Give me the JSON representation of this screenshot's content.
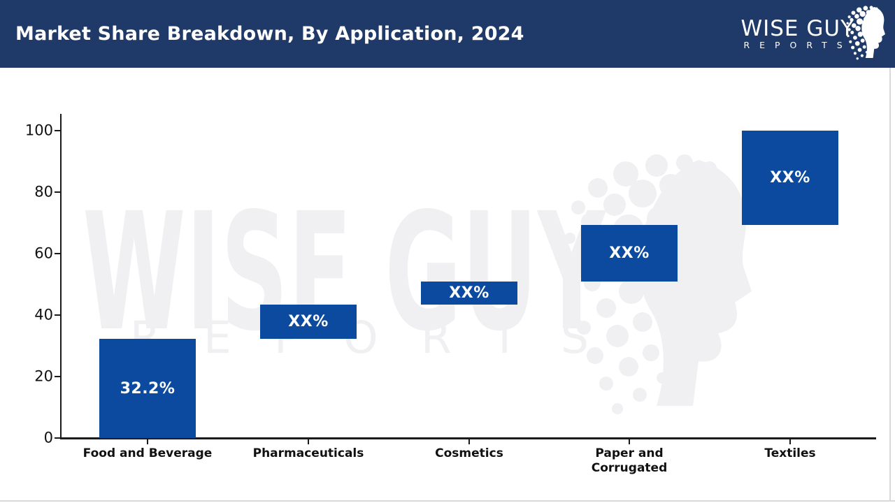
{
  "header": {
    "title": "Market Share Breakdown, By Application, 2024",
    "bg_color": "#1f3a68",
    "logo": {
      "line1": "WISE GUY",
      "line2": "REPORTS"
    }
  },
  "watermark": {
    "line1": "WISE GUY",
    "line2": "REPORTS"
  },
  "chart_data": {
    "type": "bar",
    "subtype": "waterfall",
    "title": "Market Share Breakdown, By Application, 2024",
    "categories": [
      "Food and Beverage",
      "Pharmaceuticals",
      "Cosmetics",
      "Paper and Corrugated",
      "Textiles"
    ],
    "bars": [
      {
        "category": "Food and Beverage",
        "tick": "Food and Beverage",
        "start": 0,
        "end": 32.2,
        "label": "32.2%"
      },
      {
        "category": "Pharmaceuticals",
        "tick": "Pharmaceuticals",
        "start": 32.2,
        "end": 43.3,
        "label": "XX%"
      },
      {
        "category": "Cosmetics",
        "tick": "Cosmetics",
        "start": 43.3,
        "end": 50.8,
        "label": "XX%"
      },
      {
        "category": "Paper and Corrugated",
        "tick": "Paper and\nCorrugated",
        "start": 50.8,
        "end": 69.3,
        "label": "XX%"
      },
      {
        "category": "Textiles",
        "tick": "Textiles",
        "start": 69.3,
        "end": 100,
        "label": "XX%"
      }
    ],
    "y_ticks": [
      0,
      20,
      40,
      60,
      80,
      100
    ],
    "ylim": [
      0,
      100
    ],
    "xlabel": "",
    "ylabel": "",
    "grid": "horizontal-dashed",
    "legend": "none",
    "bar_color": "#0c4aa0",
    "bar_label_color": "#ffffff",
    "axis_color": "#1a1a1a",
    "grid_color": "#d9d9d9",
    "tick_label_color": "#111111",
    "watermark_color": "#f0f0f3"
  }
}
